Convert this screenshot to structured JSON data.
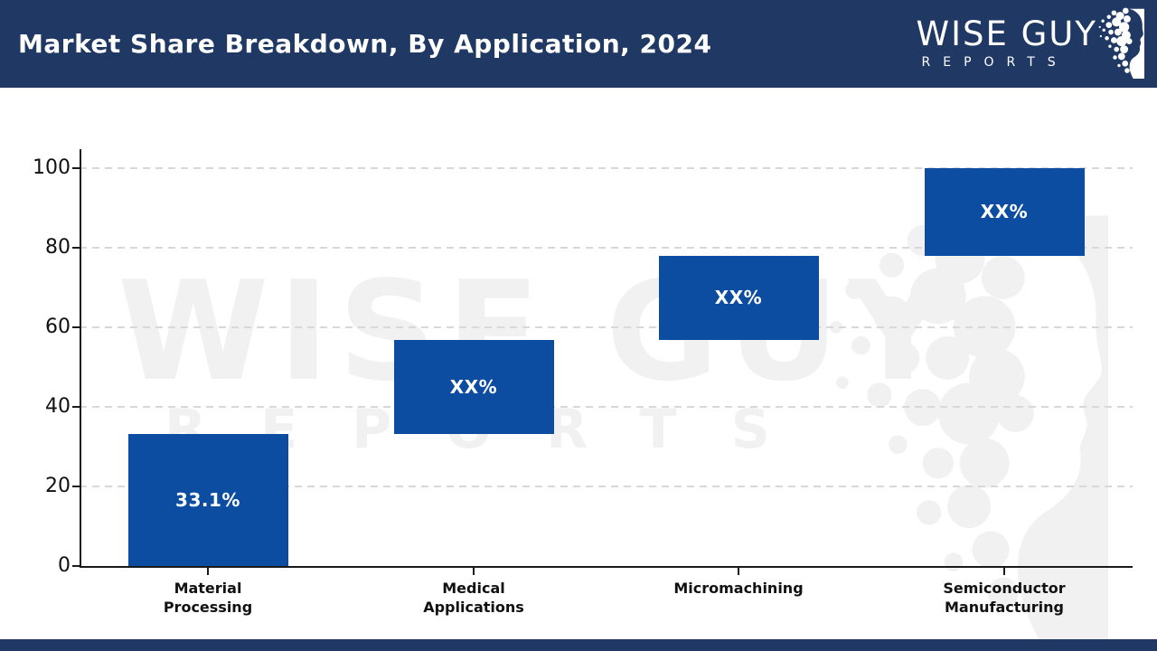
{
  "header": {
    "title": "Market Share Breakdown, By Application, 2024",
    "logo": {
      "line1": "WISE GUY",
      "line2": "REPORTS"
    }
  },
  "watermark": {
    "line1": "WISE GUY",
    "line2": "REPORTS"
  },
  "colors": {
    "header_navy": "#1f3864",
    "bar_blue": "#0d4da1",
    "gridline_gray": "#d8d8d8",
    "watermark_gray": "#f1f1f1"
  },
  "chart_data": {
    "type": "bar",
    "subtype": "waterfall",
    "title": "Market Share Breakdown, By Application, 2024",
    "categories": [
      [
        "Material",
        "Processing"
      ],
      [
        "Medical",
        "Applications"
      ],
      [
        "Micromachining"
      ],
      [
        "Semiconductor",
        "Manufacturing"
      ]
    ],
    "segments": [
      {
        "start": 0,
        "end": 33.1,
        "label": "33.1%"
      },
      {
        "start": 33.1,
        "end": 56.8,
        "label": "XX%"
      },
      {
        "start": 56.8,
        "end": 78,
        "label": "XX%"
      },
      {
        "start": 78,
        "end": 100,
        "label": "XX%"
      }
    ],
    "yticks": [
      0,
      20,
      40,
      60,
      80,
      100
    ],
    "ylim": [
      0,
      100
    ],
    "xlabel": "",
    "ylabel": "",
    "grid": "dashed-horizontal",
    "legend": "none",
    "bar_color": "#0d4da1"
  }
}
